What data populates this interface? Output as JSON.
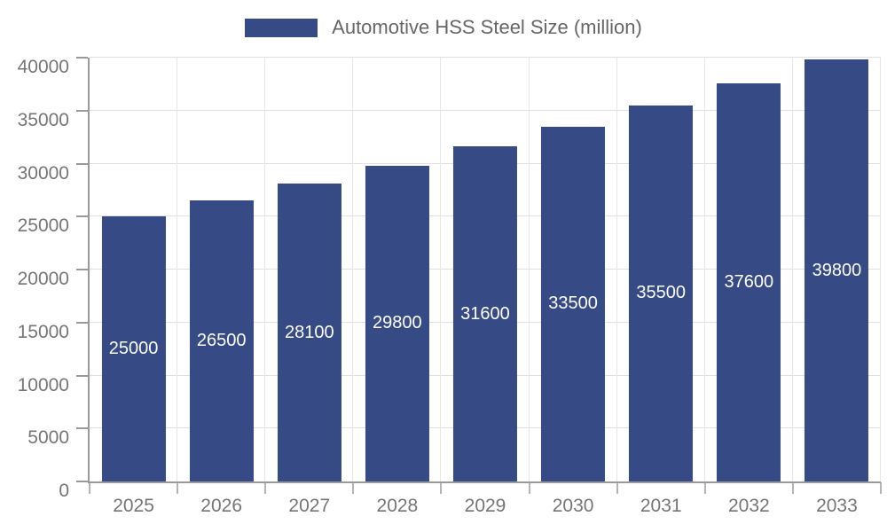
{
  "chart_data": {
    "type": "bar",
    "legend_label": "Automotive HSS Steel Size (million)",
    "categories": [
      "2025",
      "2026",
      "2027",
      "2028",
      "2029",
      "2030",
      "2031",
      "2032",
      "2033"
    ],
    "values": [
      25000,
      26500,
      28100,
      29800,
      31600,
      33500,
      35500,
      37600,
      39800
    ],
    "value_labels": [
      "25000",
      "26500",
      "28100",
      "29800",
      "31600",
      "33500",
      "35500",
      "37600",
      "39800"
    ],
    "y_ticks": [
      "0",
      "5000",
      "10000",
      "15000",
      "20000",
      "25000",
      "30000",
      "35000",
      "40000"
    ],
    "ylim": [
      0,
      40000
    ],
    "ytick_step": 5000,
    "xlabel": "",
    "ylabel": "",
    "grid": true,
    "legend_position": "top-center",
    "value_label_position": "inside-center"
  },
  "colors": {
    "bar": "#364A85",
    "axis_line": "#9a9a9a",
    "gridline_h": "#e0e0e0",
    "gridline_v": "#e6e6e6",
    "axis_label_text": "#757575",
    "legend_text": "#666666",
    "value_label_text": "#ffffff",
    "background": "#ffffff"
  }
}
